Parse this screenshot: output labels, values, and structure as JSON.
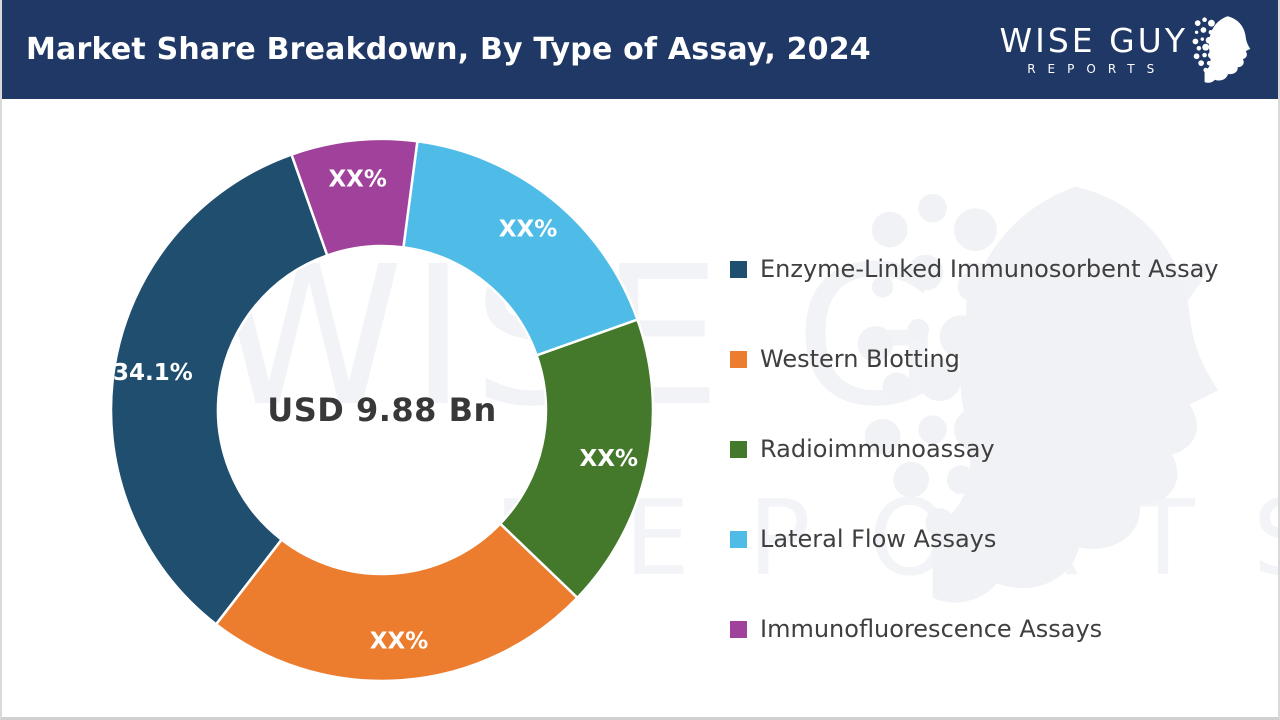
{
  "header": {
    "title": "Market Share Breakdown, By Type of Assay, 2024",
    "logo": {
      "line1": "WISE GUY",
      "line2": "REPORTS"
    }
  },
  "watermark": {
    "line1": "WISE GUY",
    "line2": "REPORTS"
  },
  "chart_data": {
    "type": "pie",
    "subtype": "donut",
    "title": "Market Share Breakdown, By Type of Assay, 2024",
    "center_label": "USD 9.88 Bn",
    "legend_position": "right",
    "start_angle_clockwise_deg": 340.5,
    "direction": "counterclockwise",
    "slices": [
      {
        "label": "Enzyme-Linked Immunosorbent Assay",
        "value_pct": 34.1,
        "display": "34.1%",
        "color": "#1F4E6E"
      },
      {
        "label": "Western Blotting",
        "value_pct": 23.3,
        "display": "XX%",
        "color": "#EC7D2E"
      },
      {
        "label": "Radioimmunoassay",
        "value_pct": 17.6,
        "display": "XX%",
        "color": "#44782A"
      },
      {
        "label": "Lateral Flow Assays",
        "value_pct": 17.5,
        "display": "XX%",
        "color": "#4FBCE8"
      },
      {
        "label": "Immunofluorescence Assays",
        "value_pct": 7.5,
        "display": "XX%",
        "color": "#A0429B"
      }
    ]
  },
  "colors": {
    "header_bg": "#1F3865",
    "watermark": "#F2F3F6",
    "center_text": "#383838",
    "legend_text": "#3F3F3F"
  }
}
